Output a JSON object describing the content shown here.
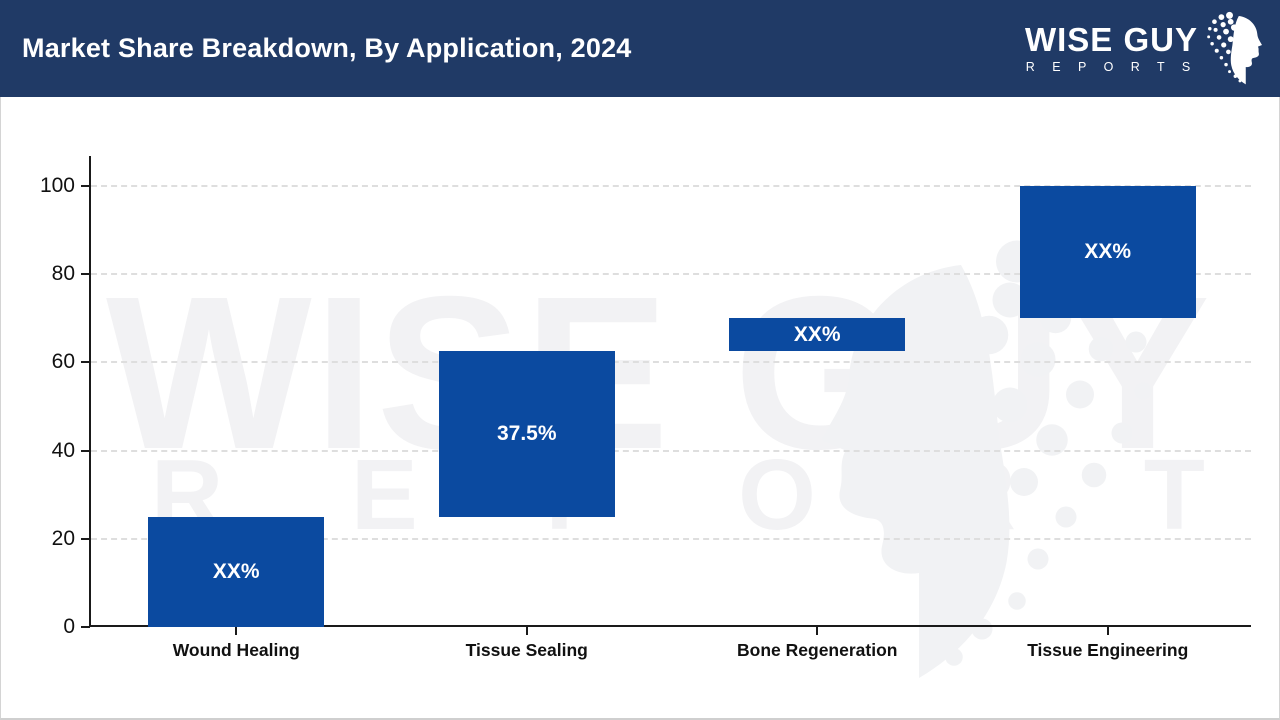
{
  "header": {
    "title": "Market Share Breakdown, By Application, 2024",
    "logo": {
      "line1": "WISE GUY",
      "line2": "R E P O R T S"
    }
  },
  "watermark": {
    "line1": "WISE GUY",
    "line2": "R E P O R T S"
  },
  "colors": {
    "header_bg": "#203a66",
    "bar": "#0b4aa0",
    "axis": "#1a1a1a",
    "grid": "#dedede",
    "watermark": "#f2f2f4"
  },
  "chart_data": {
    "type": "bar",
    "subtype": "floating-segment (waterfall-style market share)",
    "title": "Market Share Breakdown, By Application, 2024",
    "categories": [
      "Wound Healing",
      "Tissue Sealing",
      "Bone Regeneration",
      "Tissue Engineering"
    ],
    "segments": [
      {
        "category": "Wound Healing",
        "start": 0,
        "end": 25,
        "label": "XX%"
      },
      {
        "category": "Tissue Sealing",
        "start": 25,
        "end": 62.5,
        "label": "37.5%"
      },
      {
        "category": "Bone Regeneration",
        "start": 62.5,
        "end": 70,
        "label": "XX%"
      },
      {
        "category": "Tissue Engineering",
        "start": 70,
        "end": 100,
        "label": "XX%"
      }
    ],
    "yticks": [
      0,
      20,
      40,
      60,
      80,
      100
    ],
    "ylim": [
      0,
      100
    ],
    "xlabel": "",
    "ylabel": "",
    "grid": "horizontal-dashed",
    "legend": "none",
    "bar_color": "#0b4aa0",
    "value_label_position": "inside-center"
  }
}
